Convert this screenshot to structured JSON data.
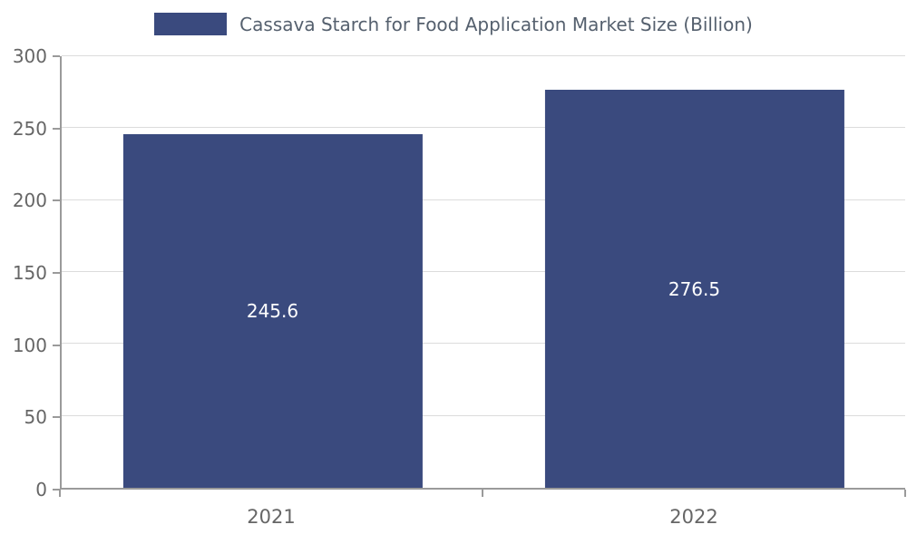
{
  "colors": {
    "bar": "#3a4a7e",
    "grid": "#dcdcdc",
    "axis": "#9a9a9a",
    "tick_text": "#666666",
    "value_label_text": "#ffffff",
    "legend_text": "#55606e"
  },
  "chart_data": {
    "type": "bar",
    "title": "Cassava Starch for Food Application Market Size (Billion)",
    "categories": [
      "2021",
      "2022"
    ],
    "values": [
      245.6,
      276.5
    ],
    "value_labels": [
      "245.6",
      "276.5"
    ],
    "xlabel": "",
    "ylabel": "",
    "ylim": [
      0,
      300
    ],
    "yticks": [
      0,
      50,
      100,
      150,
      200,
      250,
      300
    ],
    "ytick_labels": [
      "0",
      "50",
      "100",
      "150",
      "200",
      "250",
      "300"
    ],
    "grid": true,
    "legend_position": "top",
    "bar_width_fraction": 0.71
  }
}
